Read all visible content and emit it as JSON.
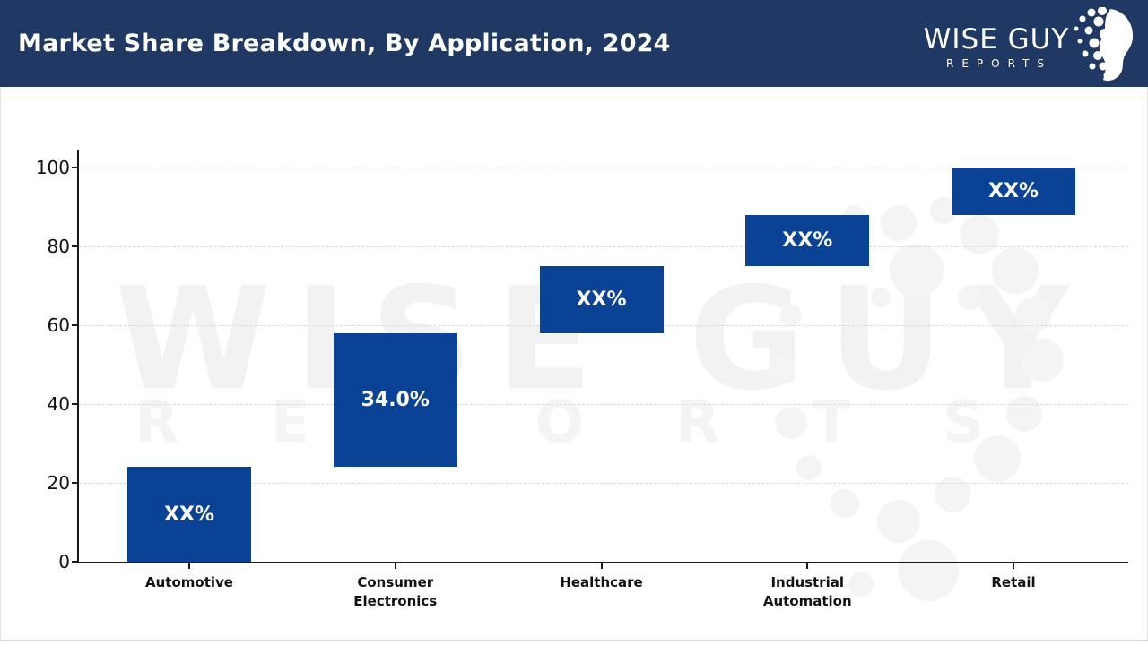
{
  "header": {
    "title": "Market Share Breakdown, By Application, 2024",
    "logo": {
      "name": "WISE GUY",
      "tagline": "REPORTS"
    }
  },
  "watermark": {
    "line1": "WISE GUY",
    "line2": "R E P O R T S"
  },
  "chart_data": {
    "type": "bar",
    "subtype": "waterfall-floating-bars",
    "title": "Market Share Breakdown, By Application, 2024",
    "xlabel": "",
    "ylabel": "",
    "ylim": [
      0,
      105
    ],
    "yticks": [
      0,
      20,
      40,
      60,
      80,
      100
    ],
    "grid": "horizontal-dashed",
    "legend": "none",
    "categories": [
      "Automotive",
      "Consumer Electronics",
      "Healthcare",
      "Industrial Automation",
      "Retail"
    ],
    "bars": [
      {
        "category": "Automotive",
        "label_lines": [
          "Automotive"
        ],
        "start": 0,
        "end": 24,
        "height": 24,
        "value_label": "XX%"
      },
      {
        "category": "Consumer Electronics",
        "label_lines": [
          "Consumer",
          "Electronics"
        ],
        "start": 24,
        "end": 58,
        "height": 34,
        "value_label": "34.0%"
      },
      {
        "category": "Healthcare",
        "label_lines": [
          "Healthcare"
        ],
        "start": 58,
        "end": 75,
        "height": 17,
        "value_label": "XX%"
      },
      {
        "category": "Industrial Automation",
        "label_lines": [
          "Industrial",
          "Automation"
        ],
        "start": 75,
        "end": 88,
        "height": 13,
        "value_label": "XX%"
      },
      {
        "category": "Retail",
        "label_lines": [
          "Retail"
        ],
        "start": 88,
        "end": 100,
        "height": 12,
        "value_label": "XX%"
      }
    ]
  },
  "colors": {
    "header_bg": "#1f3864",
    "bar": "#0a4296",
    "bar_label": "#ffffff",
    "grid": "#d9d9d9",
    "axis": "#1a1a1a",
    "watermark": "#f2f2f2"
  }
}
